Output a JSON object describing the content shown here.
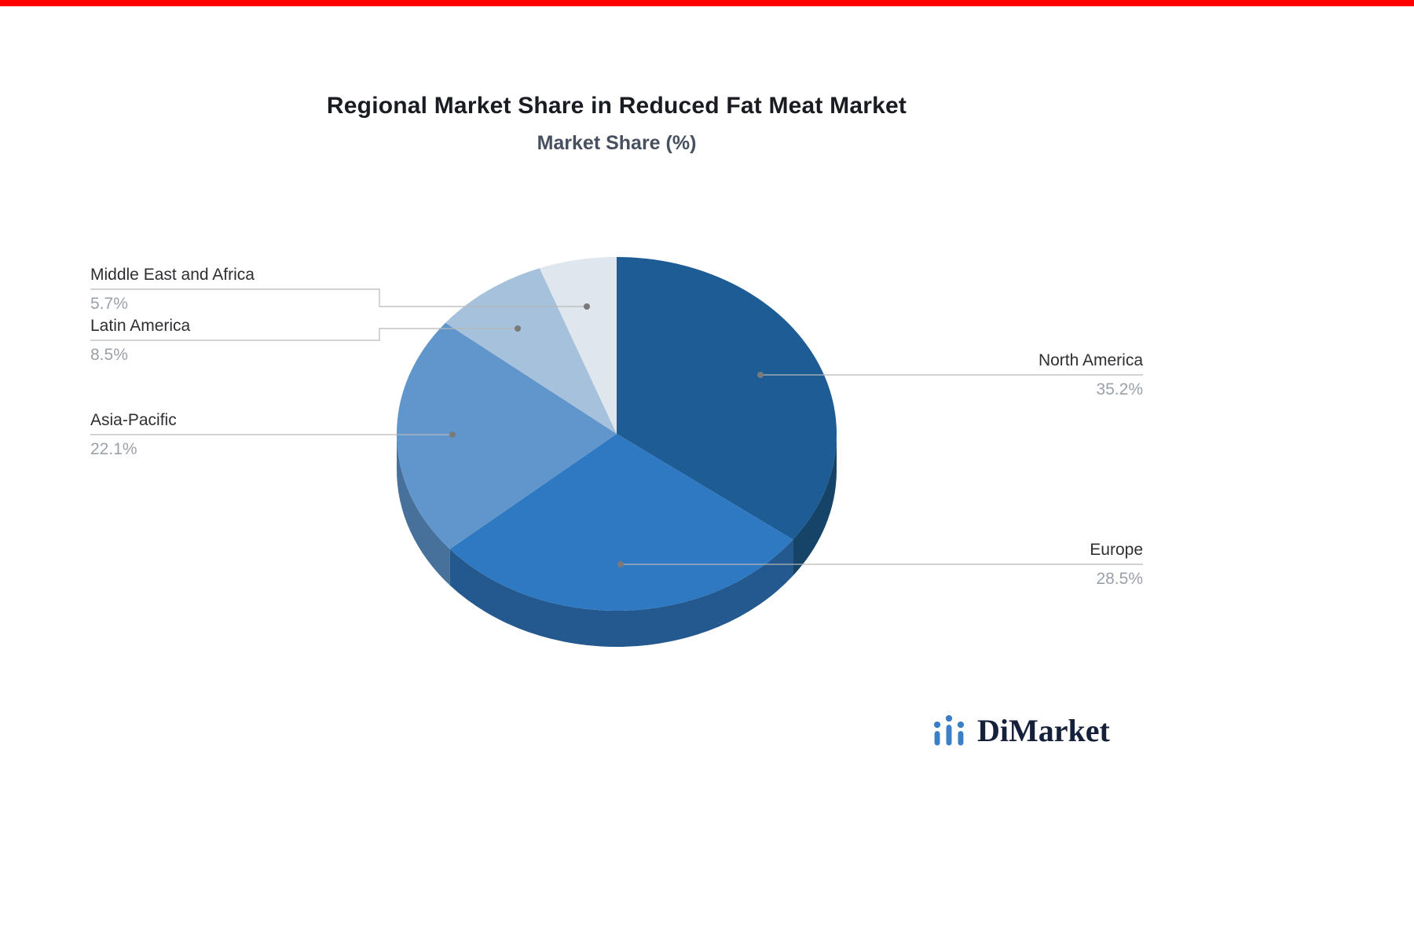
{
  "page": {
    "title": "Regional Market Share in Reduced Fat Meat Market",
    "subtitle": "Market Share (%)"
  },
  "accent": {
    "top_strip_color": "#ff0000",
    "leader_line_color": "#b8b8b8",
    "leader_dot_color": "#7a7a7a",
    "label_text_color": "#2d2f33",
    "percent_text_color": "#9ba1a8"
  },
  "branding": {
    "logo_text": "DiMarket",
    "logo_text_color": "#15213a",
    "logo_icon_color": "#3b7fc4",
    "logo_icon": "bar-chart-dots-icon"
  },
  "chart_data": {
    "type": "pie",
    "style": "3d",
    "title": "Regional Market Share in Reduced Fat Meat Market",
    "subtitle": "Market Share (%)",
    "unit": "%",
    "legend": "none",
    "start_angle_deg": -90,
    "direction": "clockwise",
    "labels": [
      "North America",
      "Europe",
      "Asia-Pacific",
      "Latin America",
      "Middle East and Africa"
    ],
    "values": [
      35.2,
      28.5,
      22.1,
      8.5,
      5.7
    ],
    "display_values": [
      "35.2%",
      "28.5%",
      "22.1%",
      "8.5%",
      "5.7%"
    ],
    "colors": [
      "#1e5c96",
      "#2e79c2",
      "#6096cc",
      "#a6c1dc",
      "#dfe6ed"
    ],
    "side_colors": [
      "#154468",
      "#23598e",
      "#47719b",
      "#7e93a8",
      "#a9b0b8"
    ]
  }
}
